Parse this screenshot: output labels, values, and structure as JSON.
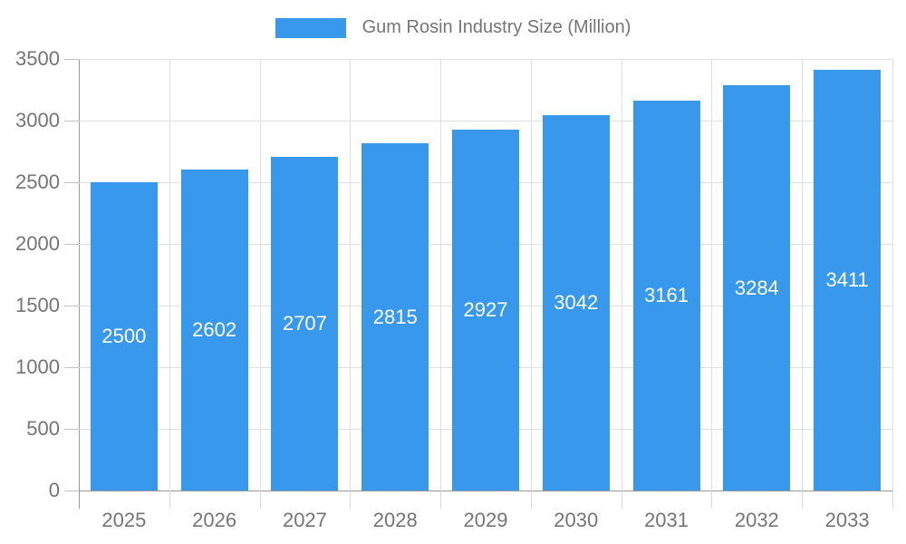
{
  "chart_data": {
    "type": "bar",
    "title": "Gum Rosin Industry Size (Million)",
    "legend_position": "top",
    "categories": [
      "2025",
      "2026",
      "2027",
      "2028",
      "2029",
      "2030",
      "2031",
      "2032",
      "2033"
    ],
    "series": [
      {
        "name": "Gum Rosin Industry Size (Million)",
        "values": [
          2500,
          2602,
          2707,
          2815,
          2927,
          3042,
          3161,
          3284,
          3411
        ]
      }
    ],
    "xlabel": "",
    "ylabel": "",
    "ylim": [
      0,
      3500
    ],
    "y_ticks": [
      0,
      500,
      1000,
      1500,
      2000,
      2500,
      3000,
      3500
    ],
    "grid": true,
    "data_labels": "inside-center-white",
    "colors": {
      "bar": "#3899EC",
      "bar_label": "#ffffff",
      "axis_text": "#757575",
      "legend_text": "#757575",
      "gridline": "#e0e0e0",
      "axis_line": "#999999",
      "tick": "#c2c2c2",
      "background": "#ffffff"
    }
  }
}
